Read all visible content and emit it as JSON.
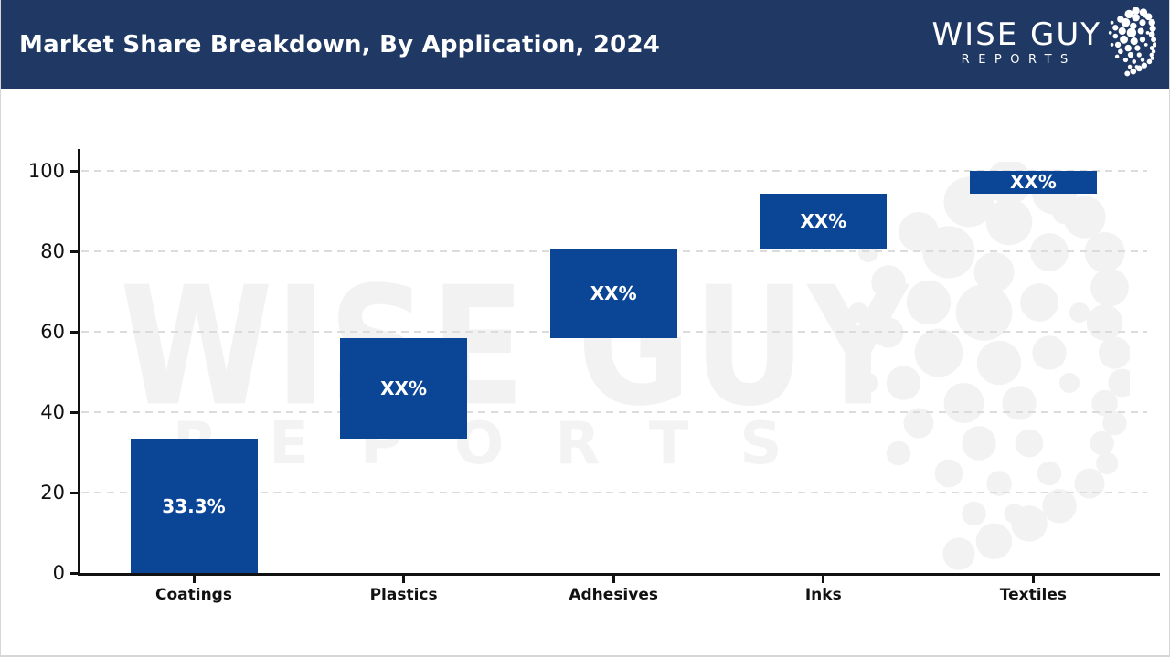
{
  "header": {
    "title": "Market Share Breakdown, By Application, 2024",
    "logo": {
      "wordmark": "WISE GUY",
      "subtext": "REPORTS"
    }
  },
  "watermark": {
    "line1": "WISE GUY",
    "line2": "REPORTS"
  },
  "chart_data": {
    "type": "bar",
    "subtype": "waterfall",
    "title": "Market Share Breakdown, By Application, 2024",
    "categories": [
      "Coatings",
      "Plastics",
      "Adhesives",
      "Inks",
      "Textiles"
    ],
    "segments": [
      {
        "category": "Coatings",
        "start": 0,
        "end": 33.3,
        "label": "33.3%"
      },
      {
        "category": "Plastics",
        "start": 33.3,
        "end": 58.3,
        "label": "XX%"
      },
      {
        "category": "Adhesives",
        "start": 58.3,
        "end": 80.6,
        "label": "XX%"
      },
      {
        "category": "Inks",
        "start": 80.6,
        "end": 94.4,
        "label": "XX%"
      },
      {
        "category": "Textiles",
        "start": 94.4,
        "end": 100,
        "label": "XX%"
      }
    ],
    "yticks": [
      0,
      20,
      40,
      60,
      80,
      100
    ],
    "ylim": [
      0,
      105
    ],
    "xlabel": "",
    "ylabel": "",
    "grid": "horizontal-dashed",
    "legend": "none",
    "colors": {
      "bar": "#0b4596",
      "bar_label": "#ffffff",
      "grid": "#dcdcdc",
      "axis": "#111111",
      "header_bg": "#203864",
      "header_text": "#ffffff",
      "watermark": "#f2f2f2"
    }
  }
}
